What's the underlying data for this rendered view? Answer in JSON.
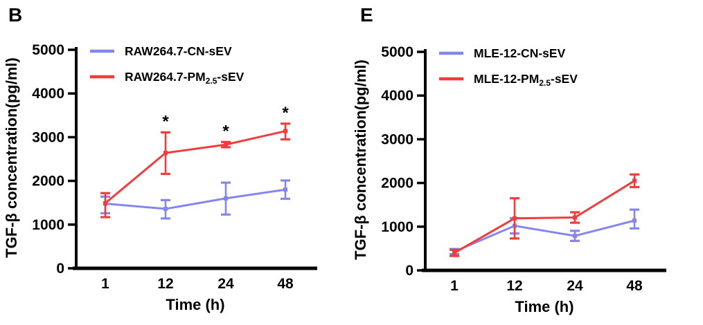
{
  "figure": {
    "background": "#ffffff",
    "axis_color": "#000000"
  },
  "colors": {
    "cn_blue": "#8585f0",
    "pm_red": "#f23c3c"
  },
  "chart_data": [
    {
      "panel_letter": "B",
      "type": "line",
      "title": "",
      "xlabel": "Time (h)",
      "ylabel": "TGF-β concentration(pg/ml)",
      "x_categories": [
        "1",
        "12",
        "24",
        "48"
      ],
      "ylim": [
        0,
        5000
      ],
      "yticks": [
        0,
        1000,
        2000,
        3000,
        4000,
        5000
      ],
      "grid": false,
      "legend_position": "top-left-inside",
      "error_bars": true,
      "series": [
        {
          "name": "RAW264.7-CN-sEV",
          "name_parts": {
            "pre": "RAW264.7-CN-sEV",
            "sub": "",
            "post": ""
          },
          "color": "#8585f0",
          "values": [
            1480,
            1360,
            1600,
            1800
          ],
          "err_low": [
            1260,
            1140,
            1230,
            1590
          ],
          "err_high": [
            1640,
            1560,
            1960,
            2010
          ],
          "significance": [
            "",
            "",
            "",
            ""
          ]
        },
        {
          "name": "RAW264.7-PM2.5-sEV",
          "name_parts": {
            "pre": "RAW264.7-PM",
            "sub": "2.5",
            "post": "-sEV"
          },
          "color": "#f23c3c",
          "values": [
            1490,
            2640,
            2830,
            3140
          ],
          "err_low": [
            1170,
            2160,
            2770,
            2950
          ],
          "err_high": [
            1720,
            3110,
            2890,
            3310
          ],
          "significance": [
            "",
            "*",
            "*",
            "*"
          ]
        }
      ]
    },
    {
      "panel_letter": "E",
      "type": "line",
      "title": "",
      "xlabel": "Time (h)",
      "ylabel": "TGF-β concentration(pg/ml)",
      "x_categories": [
        "1",
        "12",
        "24",
        "48"
      ],
      "ylim": [
        0,
        5000
      ],
      "yticks": [
        0,
        1000,
        2000,
        3000,
        4000,
        5000
      ],
      "grid": false,
      "legend_position": "top-left-inside",
      "error_bars": true,
      "series": [
        {
          "name": "MLE-12-CN-sEV",
          "name_parts": {
            "pre": "MLE-12-CN-sEV",
            "sub": "",
            "post": ""
          },
          "color": "#8585f0",
          "values": [
            430,
            1020,
            790,
            1140
          ],
          "err_low": [
            370,
            845,
            675,
            960
          ],
          "err_high": [
            490,
            1195,
            905,
            1390
          ],
          "significance": [
            "",
            "",
            "",
            ""
          ]
        },
        {
          "name": "MLE-12-PM2.5-sEV",
          "name_parts": {
            "pre": "MLE-12-PM",
            "sub": "2.5",
            "post": "-sEV"
          },
          "color": "#f23c3c",
          "values": [
            400,
            1190,
            1210,
            2050
          ],
          "err_low": [
            330,
            730,
            1090,
            1905
          ],
          "err_high": [
            470,
            1650,
            1330,
            2195
          ],
          "significance": [
            "",
            "",
            "",
            ""
          ]
        }
      ]
    }
  ]
}
